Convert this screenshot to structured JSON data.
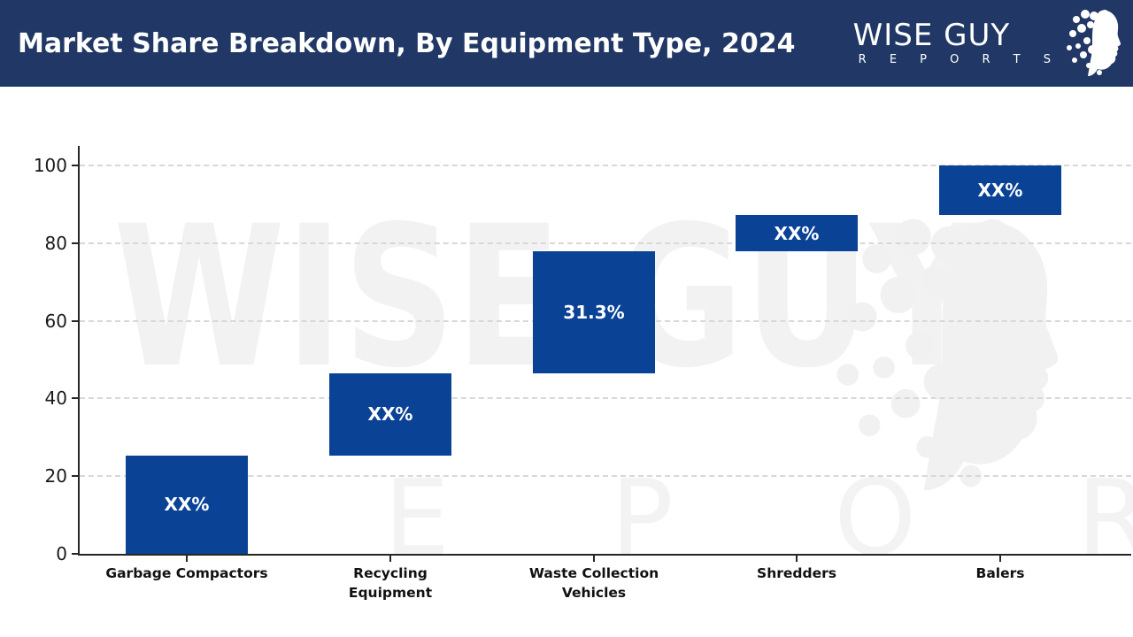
{
  "header": {
    "title": "Market Share Breakdown, By Equipment Type, 2024",
    "logo": {
      "name": "WISE GUY",
      "sub": "R E P O R T S"
    }
  },
  "watermark": {
    "line1": "WISE GUY",
    "line2": "R E P O R T S"
  },
  "chart_data": {
    "type": "bar",
    "subtype": "waterfall",
    "title": "Market Share Breakdown, By Equipment Type, 2024",
    "xlabel": "",
    "ylabel": "",
    "ylim": [
      0,
      105
    ],
    "yticks": [
      0,
      20,
      40,
      60,
      80,
      100
    ],
    "grid": {
      "axis": "y",
      "style": "dashed",
      "color": "#d8d8d8"
    },
    "legend": null,
    "bar_color": "#0a4296",
    "bar_label_color": "#ffffff",
    "categories": [
      "Garbage Compactors",
      "Recycling Equipment",
      "Waste Collection Vehicles",
      "Shredders",
      "Balers"
    ],
    "x_label_lines": [
      [
        "Garbage Compactors"
      ],
      [
        "Recycling",
        "Equipment"
      ],
      [
        "Waste Collection",
        "Vehicles"
      ],
      [
        "Shredders"
      ],
      [
        "Balers"
      ]
    ],
    "bars": [
      {
        "category": "Garbage Compactors",
        "start": 0,
        "end": 25.3,
        "value_label": "XX%"
      },
      {
        "category": "Recycling Equipment",
        "start": 25.3,
        "end": 46.5,
        "value_label": "XX%"
      },
      {
        "category": "Waste Collection Vehicles",
        "start": 46.5,
        "end": 77.8,
        "value_label": "31.3%",
        "value": 31.3
      },
      {
        "category": "Shredders",
        "start": 77.8,
        "end": 87.3,
        "value_label": "XX%"
      },
      {
        "category": "Balers",
        "start": 87.3,
        "end": 100,
        "value_label": "XX%"
      }
    ]
  },
  "colors": {
    "header_bg": "#213866",
    "page_bg": "#ffffff",
    "watermark": "#f2f2f2",
    "border": "#d6d6d6"
  }
}
